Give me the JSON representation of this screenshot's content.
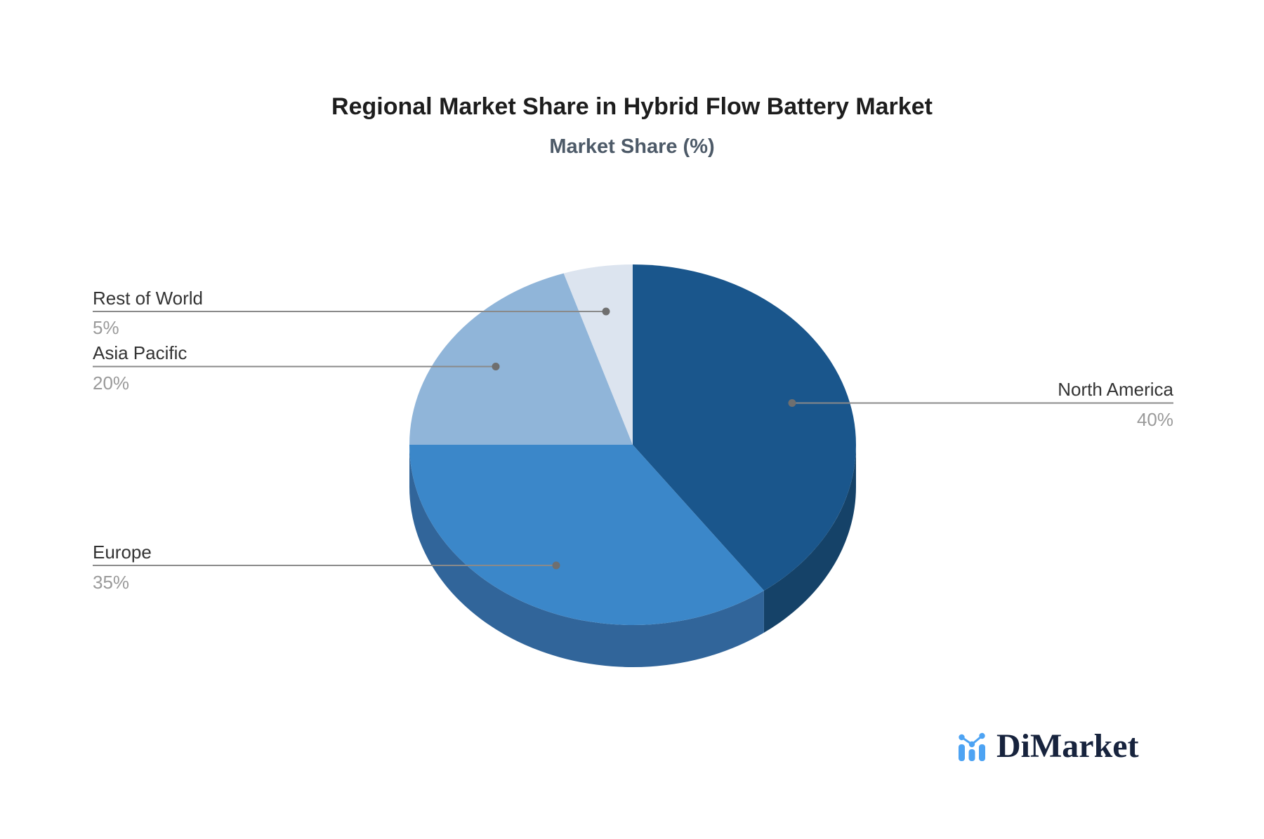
{
  "header": {
    "title": "Regional Market Share in Hybrid Flow Battery Market",
    "subtitle": "Market Share (%)"
  },
  "chart_data": {
    "type": "pie",
    "title": "Regional Market Share in Hybrid Flow Battery Market",
    "subtitle": "Market Share (%)",
    "unit": "%",
    "effect_3d": true,
    "start_angle": "12-oclock",
    "direction": "clockwise",
    "legend": "none (leader-line labels)",
    "slices": [
      {
        "label": "North America",
        "value": 40,
        "pct_label": "40%",
        "color": "#1a568c",
        "side_color": "#154268",
        "label_side": "right"
      },
      {
        "label": "Europe",
        "value": 35,
        "pct_label": "35%",
        "color": "#3b87c9",
        "side_color": "#31659a",
        "label_side": "left"
      },
      {
        "label": "Asia Pacific",
        "value": 20,
        "pct_label": "20%",
        "color": "#90b5d9",
        "side_color": "#7a9ab8",
        "label_side": "left"
      },
      {
        "label": "Rest of World",
        "value": 5,
        "pct_label": "5%",
        "color": "#dce4ef",
        "side_color": "#bcc4cf",
        "label_side": "left"
      }
    ],
    "leader_line_color": "#8a8a8a",
    "leader_dot_color": "#6f6f6f",
    "label_color": "#333333",
    "pct_color": "#9a9a9a"
  },
  "branding": {
    "logo_text": "DiMarket",
    "logo_icon": "mini-bar-line-chart-icon",
    "logo_icon_color": "#4da3f3",
    "logo_text_color": "#17233d"
  }
}
